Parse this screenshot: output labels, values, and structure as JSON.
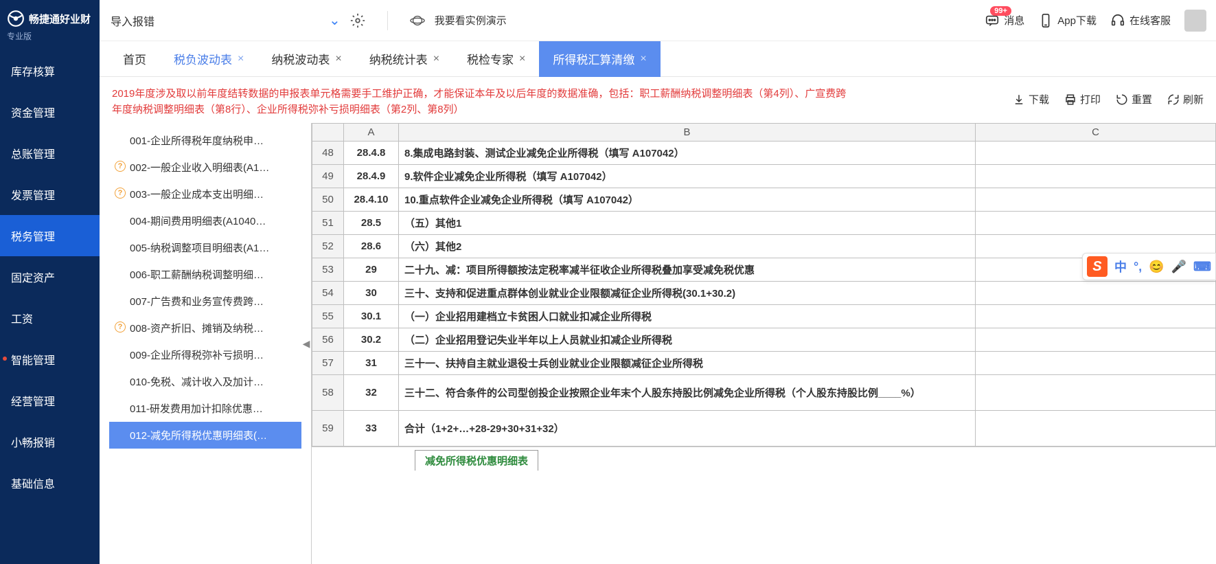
{
  "brand": {
    "name": "畅捷通好业财",
    "edition": "专业版"
  },
  "sidebar": {
    "items": [
      {
        "label": "库存核算"
      },
      {
        "label": "资金管理"
      },
      {
        "label": "总账管理"
      },
      {
        "label": "发票管理"
      },
      {
        "label": "税务管理",
        "active": true
      },
      {
        "label": "固定资产"
      },
      {
        "label": "工资"
      },
      {
        "label": "智能管理",
        "dot": true
      },
      {
        "label": "经营管理"
      },
      {
        "label": "小畅报销"
      },
      {
        "label": "基础信息"
      }
    ]
  },
  "topbar": {
    "import_error": "导入报错",
    "demo": "我要看实例演示",
    "msg": "消息",
    "badge": "99+",
    "download": "App下载",
    "service": "在线客服"
  },
  "tabs": [
    {
      "label": "首页"
    },
    {
      "label": "税负波动表",
      "closable": true,
      "highlight": true
    },
    {
      "label": "纳税波动表",
      "closable": true
    },
    {
      "label": "纳税统计表",
      "closable": true
    },
    {
      "label": "税检专家",
      "closable": true
    },
    {
      "label": "所得税汇算清缴",
      "closable": true,
      "active": true
    }
  ],
  "notice": "2019年度涉及取以前年度结转数据的申报表单元格需要手工维护正确，才能保证本年及以后年度的数据准确，包括：职工薪酬纳税调整明细表（第4列）、广宣费跨年度纳税调整明细表（第8行）、企业所得税弥补亏损明细表（第2列、第8列）",
  "toolbar": {
    "download": "下载",
    "print": "打印",
    "reset": "重置",
    "refresh": "刷新"
  },
  "list": {
    "items": [
      {
        "label": "001-企业所得税年度纳税申…"
      },
      {
        "label": "002-一般企业收入明细表(A1…",
        "q": true
      },
      {
        "label": "003-一般企业成本支出明细…",
        "q": true
      },
      {
        "label": "004-期间费用明细表(A1040…"
      },
      {
        "label": "005-纳税调整项目明细表(A1…"
      },
      {
        "label": "006-职工薪酬纳税调整明细…"
      },
      {
        "label": "007-广告费和业务宣传费跨…"
      },
      {
        "label": "008-资产折旧、摊销及纳税…",
        "q": true
      },
      {
        "label": "009-企业所得税弥补亏损明…"
      },
      {
        "label": "010-免税、减计收入及加计…"
      },
      {
        "label": "011-研发费用加计扣除优惠…"
      },
      {
        "label": "012-减免所得税优惠明细表(…",
        "active": true
      }
    ]
  },
  "grid": {
    "cols": [
      "A",
      "B",
      "C"
    ],
    "rows": [
      {
        "n": "48",
        "a": "28.4.8",
        "b": "        8.集成电路封装、测试企业减免企业所得税（填写 A107042）"
      },
      {
        "n": "49",
        "a": "28.4.9",
        "b": "        9.软件企业减免企业所得税（填写 A107042）"
      },
      {
        "n": "50",
        "a": "28.4.10",
        "b": "        10.重点软件企业减免企业所得税（填写 A107042）"
      },
      {
        "n": "51",
        "a": "28.5",
        "b": "   （五）其他1"
      },
      {
        "n": "52",
        "a": "28.6",
        "b": "   （六）其他2"
      },
      {
        "n": "53",
        "a": "29",
        "b": "二十九、减：项目所得额按法定税率减半征收企业所得税叠加享受减免税优惠"
      },
      {
        "n": "54",
        "a": "30",
        "b": "三十、支持和促进重点群体创业就业企业限额减征企业所得税(30.1+30.2)"
      },
      {
        "n": "55",
        "a": "30.1",
        "b": "    （一）企业招用建档立卡贫困人口就业扣减企业所得税"
      },
      {
        "n": "56",
        "a": "30.2",
        "b": "    （二）企业招用登记失业半年以上人员就业扣减企业所得税"
      },
      {
        "n": "57",
        "a": "31",
        "b": "三十一、扶持自主就业退役士兵创业就业企业限额减征企业所得税"
      },
      {
        "n": "58",
        "a": "32",
        "b": "三十二、符合条件的公司型创投企业按照企业年末个人股东持股比例减免企业所得税（个人股东持股比例____%）",
        "tall": true
      },
      {
        "n": "59",
        "a": "33",
        "b": "合计（1+2+…+28-29+30+31+32）",
        "tall": true
      }
    ],
    "sheet_tab": "减免所得税优惠明细表"
  },
  "ime": {
    "zh": "中"
  }
}
